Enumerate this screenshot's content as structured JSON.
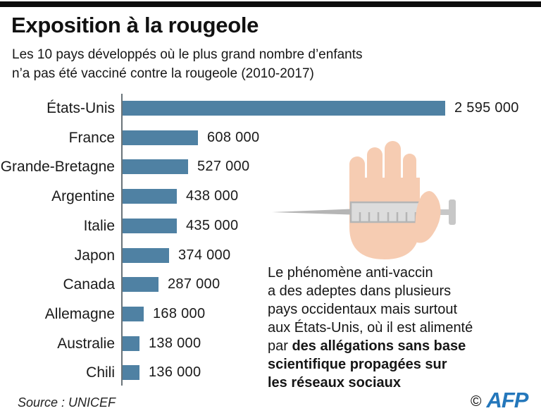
{
  "colors": {
    "bar": "#4f81a3",
    "axis": "#6a7479",
    "hand": "#f6ccb2",
    "syringe_fill": "#dcdcdc",
    "syringe_stroke": "#b5b5b5",
    "plunger": "#c7c7c7",
    "afp_blue": "#2477bb",
    "topbar": "#0d0d0d"
  },
  "header": {
    "title": "Exposition à la rougeole",
    "subtitle": [
      "Les 10 pays développés où le plus grand nombre d’enfants",
      "n’a pas été vacciné contre la rougeole (2010-2017)"
    ]
  },
  "chart_data": {
    "type": "bar",
    "orientation": "horizontal",
    "categories": [
      "États-Unis",
      "France",
      "Grande-Bretagne",
      "Argentine",
      "Italie",
      "Japon",
      "Canada",
      "Allemagne",
      "Australie",
      "Chili"
    ],
    "values": [
      2595000,
      608000,
      527000,
      438000,
      435000,
      374000,
      287000,
      168000,
      138000,
      136000
    ],
    "value_labels": [
      "2 595 000",
      "608 000",
      "527 000",
      "438 000",
      "435 000",
      "374 000",
      "287 000",
      "168 000",
      "138 000",
      "136 000"
    ],
    "title": "Exposition à la rougeole",
    "xlabel": "",
    "ylabel": "",
    "xlim": [
      0,
      2595000
    ],
    "grid": false,
    "legend": "none",
    "bar_color": "#4f81a3"
  },
  "annotation": {
    "lines": [
      [
        {
          "t": "Le phénomène anti-vaccin",
          "b": 0
        }
      ],
      [
        {
          "t": "a des adeptes dans plusieurs",
          "b": 0
        }
      ],
      [
        {
          "t": "pays occidentaux mais surtout",
          "b": 0
        }
      ],
      [
        {
          "t": "aux États-Unis, où il est alimenté",
          "b": 0
        }
      ],
      [
        {
          "t": "par ",
          "b": 0
        },
        {
          "t": "des allégations sans base",
          "b": 1
        }
      ],
      [
        {
          "t": "scientifique propagées sur",
          "b": 1
        }
      ],
      [
        {
          "t": "les réseaux sociaux",
          "b": 1
        }
      ]
    ]
  },
  "icon": {
    "name": "hand-stop-syringe"
  },
  "footer": {
    "source": "Source : UNICEF",
    "copyright": "©",
    "agency": "AFP"
  }
}
